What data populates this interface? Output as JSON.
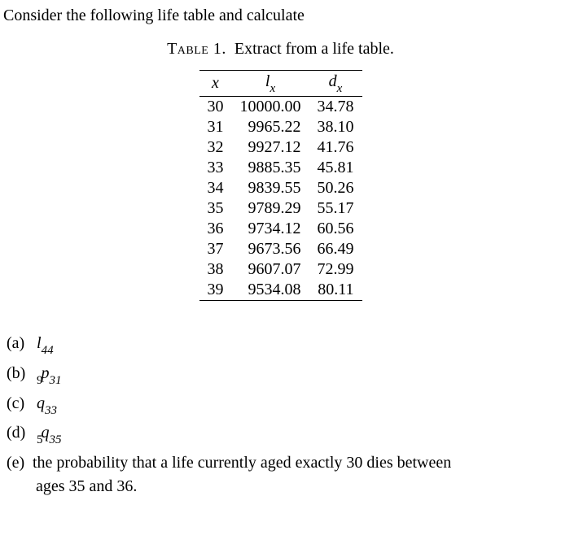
{
  "intro": "Consider the following life table and calculate",
  "caption_prefix": "Table 1.",
  "caption_text": "Extract from a life table.",
  "table": {
    "headers": [
      "x",
      "l",
      "d"
    ],
    "header_sub": "x",
    "rows": [
      [
        "30",
        "10000.00",
        "34.78"
      ],
      [
        "31",
        "9965.22",
        "38.10"
      ],
      [
        "32",
        "9927.12",
        "41.76"
      ],
      [
        "33",
        "9885.35",
        "45.81"
      ],
      [
        "34",
        "9839.55",
        "50.26"
      ],
      [
        "35",
        "9789.29",
        "55.17"
      ],
      [
        "36",
        "9734.12",
        "60.56"
      ],
      [
        "37",
        "9673.56",
        "66.49"
      ],
      [
        "38",
        "9607.07",
        "72.99"
      ],
      [
        "39",
        "9534.08",
        "80.11"
      ]
    ]
  },
  "questions": {
    "a": {
      "label": "(a)",
      "sym": "l",
      "sub": "44"
    },
    "b": {
      "label": "(b)",
      "pre": "9",
      "sym": "p",
      "sub": "31"
    },
    "c": {
      "label": "(c)",
      "sym": "q",
      "sub": "33"
    },
    "d": {
      "label": "(d)",
      "pre": "5",
      "sym": "q",
      "sub": "35"
    },
    "e": {
      "label": "(e)",
      "text1": "the probability that a life currently aged exactly 30 dies between",
      "text2": "ages 35 and 36."
    }
  }
}
